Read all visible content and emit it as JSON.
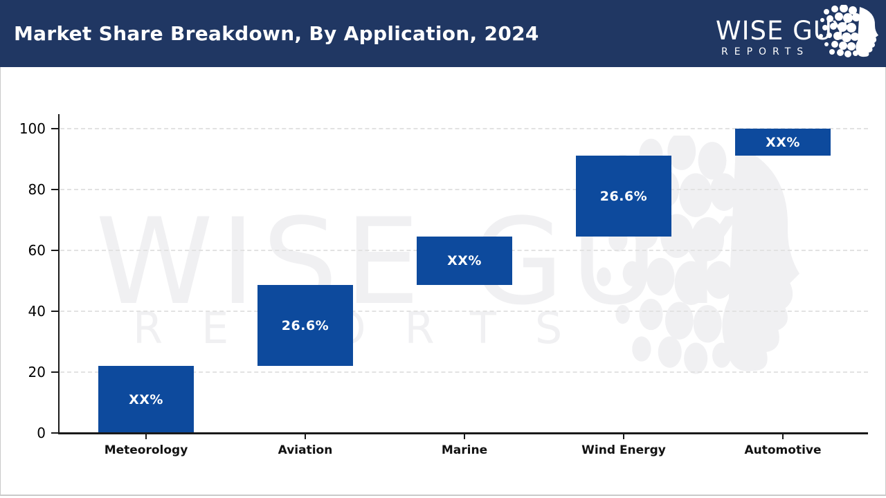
{
  "header": {
    "title": "Market Share Breakdown, By Application, 2024",
    "logo": {
      "line1": "WISE GUY",
      "line2": "REPORTS"
    }
  },
  "watermark": {
    "line1": "WISE GUY",
    "line2": "REPORTS"
  },
  "colors": {
    "header_bg": "#203763",
    "bar": "#0d4a9d",
    "grid": "#e2e2e2",
    "axis": "#1a1a1a",
    "watermark": "#f0f0f2",
    "bar_label_text": "#ffffff"
  },
  "chart_data": {
    "type": "bar",
    "subtype": "waterfall-floating-bars",
    "title": "Market Share Breakdown, By Application, 2024",
    "categories": [
      "Meteorology",
      "Aviation",
      "Marine",
      "Wind Energy",
      "Automotive"
    ],
    "segments": [
      {
        "category": "Meteorology",
        "start": 0,
        "end": 22,
        "height": 22,
        "label": "XX%"
      },
      {
        "category": "Aviation",
        "start": 22,
        "end": 48.6,
        "height": 26.6,
        "label": "26.6%"
      },
      {
        "category": "Marine",
        "start": 48.6,
        "end": 64.5,
        "height": 15.9,
        "label": "XX%"
      },
      {
        "category": "Wind Energy",
        "start": 64.5,
        "end": 91.1,
        "height": 26.6,
        "label": "26.6%"
      },
      {
        "category": "Automotive",
        "start": 91.1,
        "end": 100,
        "height": 8.9,
        "label": "XX%"
      }
    ],
    "xlabel": "",
    "ylabel": "",
    "ylim": [
      0,
      100
    ],
    "yticks": [
      0,
      20,
      40,
      60,
      80,
      100
    ],
    "grid": "horizontal dashed, no gridline at 0",
    "legend": "none"
  }
}
